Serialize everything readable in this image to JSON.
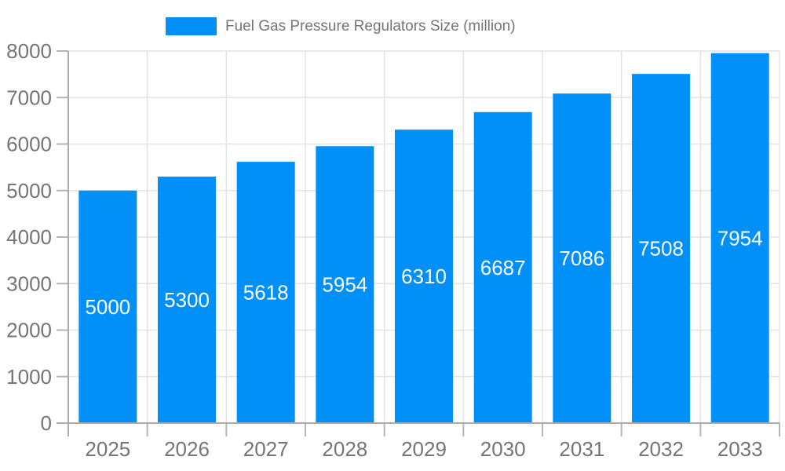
{
  "legend": {
    "label": "Fuel Gas Pressure Regulators Size (million)"
  },
  "chart_data": {
    "type": "bar",
    "title": "Fuel Gas Pressure Regulators Size (million)",
    "categories": [
      "2025",
      "2026",
      "2027",
      "2028",
      "2029",
      "2030",
      "2031",
      "2032",
      "2033"
    ],
    "values": [
      5000,
      5300,
      5618,
      5954,
      6310,
      6687,
      7086,
      7508,
      7954
    ],
    "series": [
      {
        "name": "Fuel Gas Pressure Regulators Size (million)",
        "values": [
          5000,
          5300,
          5618,
          5954,
          6310,
          6687,
          7086,
          7508,
          7954
        ]
      }
    ],
    "xlabel": "",
    "ylabel": "",
    "ylim": [
      0,
      8000
    ],
    "yticks": [
      0,
      1000,
      2000,
      3000,
      4000,
      5000,
      6000,
      7000,
      8000
    ],
    "bar_value_labels": [
      5000,
      5300,
      5618,
      5954,
      6310,
      6687,
      7086,
      7508,
      7954
    ],
    "grid": "both",
    "legend_position": "top-center",
    "colors": {
      "bar": "#0190F8",
      "axis_text": "#757575",
      "bar_label_text": "#FFFFFF",
      "grid_line": "#E3E3E3",
      "axis_line": "#ABABAB",
      "tick_line": "#B5B5B5",
      "background": "#FFFFFF",
      "legend_text": "#757575"
    }
  }
}
